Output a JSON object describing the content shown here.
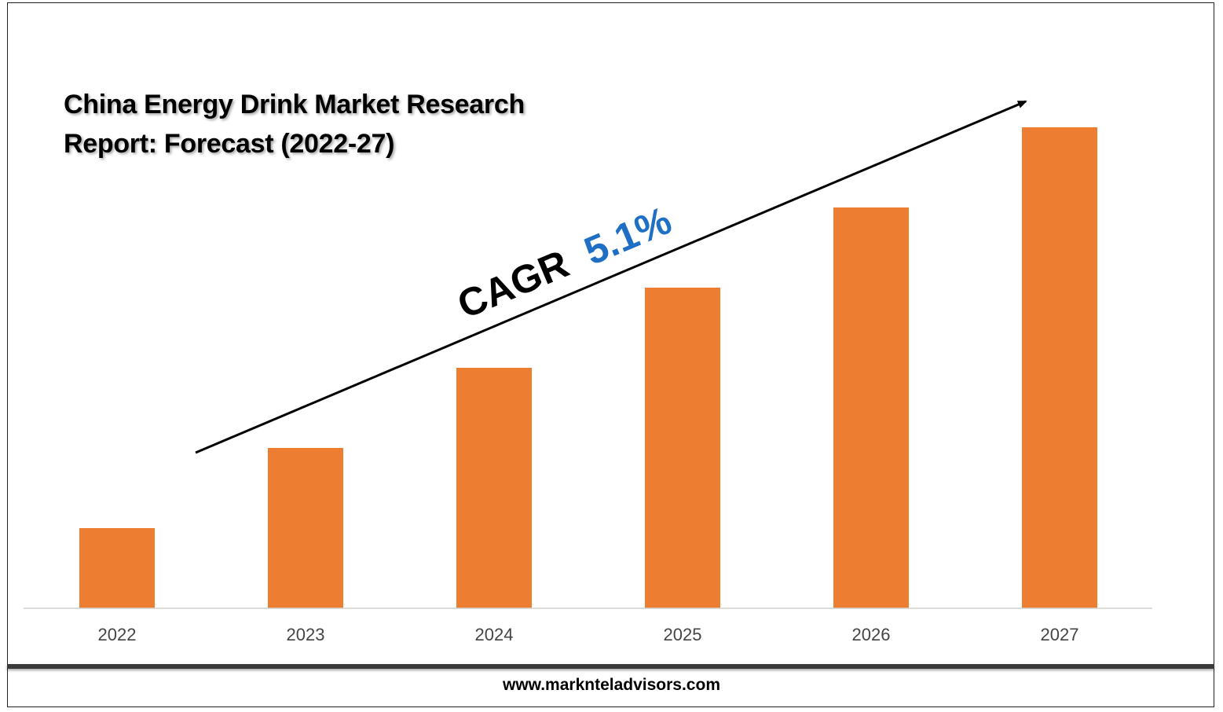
{
  "chart_data": {
    "type": "bar",
    "title": "China Energy Drink Market Research Report: Forecast (2022-27)",
    "categories": [
      "2022",
      "2023",
      "2024",
      "2025",
      "2026",
      "2027"
    ],
    "values": [
      1.0,
      2.0,
      3.0,
      4.0,
      5.0,
      6.0
    ],
    "ylim": [
      0,
      6.0
    ],
    "xlabel": "",
    "ylabel": "",
    "grid": false,
    "bar_color": "#ED7D31",
    "annotation": {
      "prefix": "CAGR",
      "value": "5.1%",
      "prefix_color": "#000000",
      "value_color": "#1F6FC5"
    }
  },
  "footer": {
    "url": "www.marknteladvisors.com"
  }
}
